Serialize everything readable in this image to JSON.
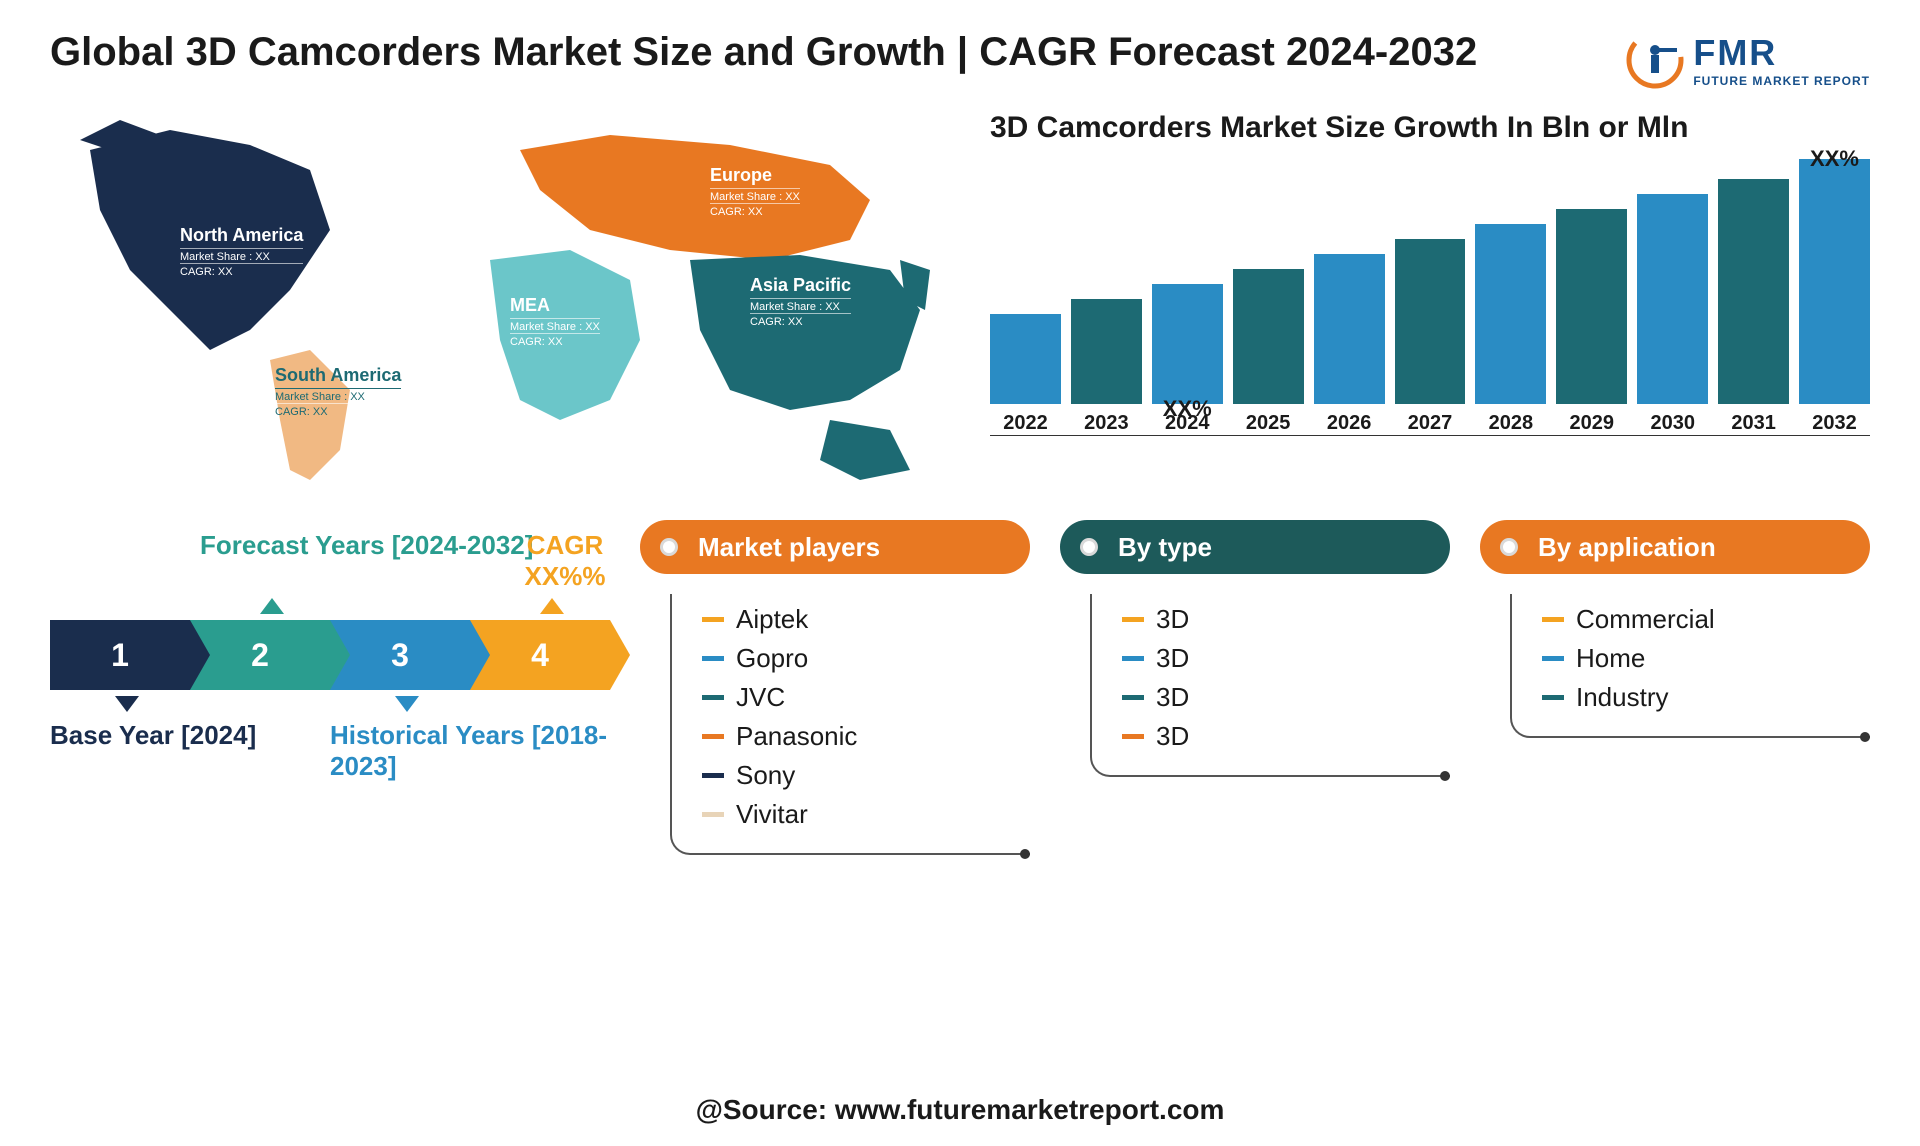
{
  "title": "Global 3D Camcorders Market Size and Growth | CAGR Forecast 2024-2032",
  "logo": {
    "main": "FMR",
    "sub": "FUTURE MARKET REPORT",
    "icon_color": "#e87822",
    "text_color": "#164f8a"
  },
  "map": {
    "regions": [
      {
        "key": "na",
        "name": "North America",
        "sub1": "Market Share : XX",
        "sub2": "CAGR: XX",
        "color": "#1a2d4d"
      },
      {
        "key": "sa",
        "name": "South America",
        "sub1": "Market Share : XX",
        "sub2": "CAGR: XX",
        "color": "#f1b983"
      },
      {
        "key": "mea",
        "name": "MEA",
        "sub1": "Market Share : XX",
        "sub2": "CAGR: XX",
        "color": "#6bc6c9"
      },
      {
        "key": "eu",
        "name": "Europe",
        "sub1": "Market Share : XX",
        "sub2": "CAGR: XX",
        "color": "#e87822"
      },
      {
        "key": "ap",
        "name": "Asia Pacific",
        "sub1": "Market Share : XX",
        "sub2": "CAGR: XX",
        "color": "#1d6a73"
      }
    ]
  },
  "chart": {
    "title": "3D Camcorders Market Size Growth In Bln or Mln",
    "type": "bar",
    "years": [
      "2022",
      "2023",
      "2024",
      "2025",
      "2026",
      "2027",
      "2028",
      "2029",
      "2030",
      "2031",
      "2032"
    ],
    "values": [
      90,
      105,
      120,
      135,
      150,
      165,
      180,
      195,
      210,
      225,
      245
    ],
    "ylim": [
      0,
      260
    ],
    "bar_colors": [
      "#2a8cc4",
      "#1d6a73",
      "#2a8cc4",
      "#1d6a73",
      "#2a8cc4",
      "#1d6a73",
      "#2a8cc4",
      "#1d6a73",
      "#2a8cc4",
      "#1d6a73",
      "#2a8cc4"
    ],
    "annotations": [
      {
        "index": 2,
        "text": "XX%"
      },
      {
        "index": 10,
        "text": "XX%"
      }
    ],
    "label_fontsize": 20,
    "title_fontsize": 30
  },
  "timeline": {
    "items": [
      {
        "num": "1",
        "color": "#1a2d4d",
        "label": "Base Year [2024]",
        "label_color": "#1a2d4d",
        "label_pos": "bottom"
      },
      {
        "num": "2",
        "color": "#2a9d8f",
        "label": "Forecast Years [2024-2032]",
        "label_color": "#2a9d8f",
        "label_pos": "top"
      },
      {
        "num": "3",
        "color": "#2a8cc4",
        "label": "Historical Years [2018-2023]",
        "label_color": "#2a8cc4",
        "label_pos": "bottom"
      },
      {
        "num": "4",
        "color": "#f4a321",
        "label": "CAGR XX%%",
        "label_color": "#f4a321",
        "label_pos": "top"
      }
    ]
  },
  "categories": [
    {
      "title": "Market players",
      "header_color": "#e87822",
      "items": [
        {
          "label": "Aiptek",
          "mark_color": "#f4a321"
        },
        {
          "label": "Gopro",
          "mark_color": "#2a8cc4"
        },
        {
          "label": "JVC",
          "mark_color": "#1d6a73"
        },
        {
          "label": "Panasonic",
          "mark_color": "#e87822"
        },
        {
          "label": "Sony",
          "mark_color": "#1a2d4d"
        },
        {
          "label": "Vivitar",
          "mark_color": "#e8d4b8"
        }
      ]
    },
    {
      "title": "By type",
      "header_color": "#1d5a5a",
      "items": [
        {
          "label": "3D",
          "mark_color": "#f4a321"
        },
        {
          "label": "3D",
          "mark_color": "#2a8cc4"
        },
        {
          "label": "3D",
          "mark_color": "#1d6a73"
        },
        {
          "label": "3D",
          "mark_color": "#e87822"
        }
      ]
    },
    {
      "title": "By application",
      "header_color": "#e87822",
      "items": [
        {
          "label": "Commercial",
          "mark_color": "#f4a321"
        },
        {
          "label": "Home",
          "mark_color": "#2a8cc4"
        },
        {
          "label": "Industry",
          "mark_color": "#1d6a73"
        }
      ]
    }
  ],
  "source": "@Source: www.futuremarketreport.com"
}
